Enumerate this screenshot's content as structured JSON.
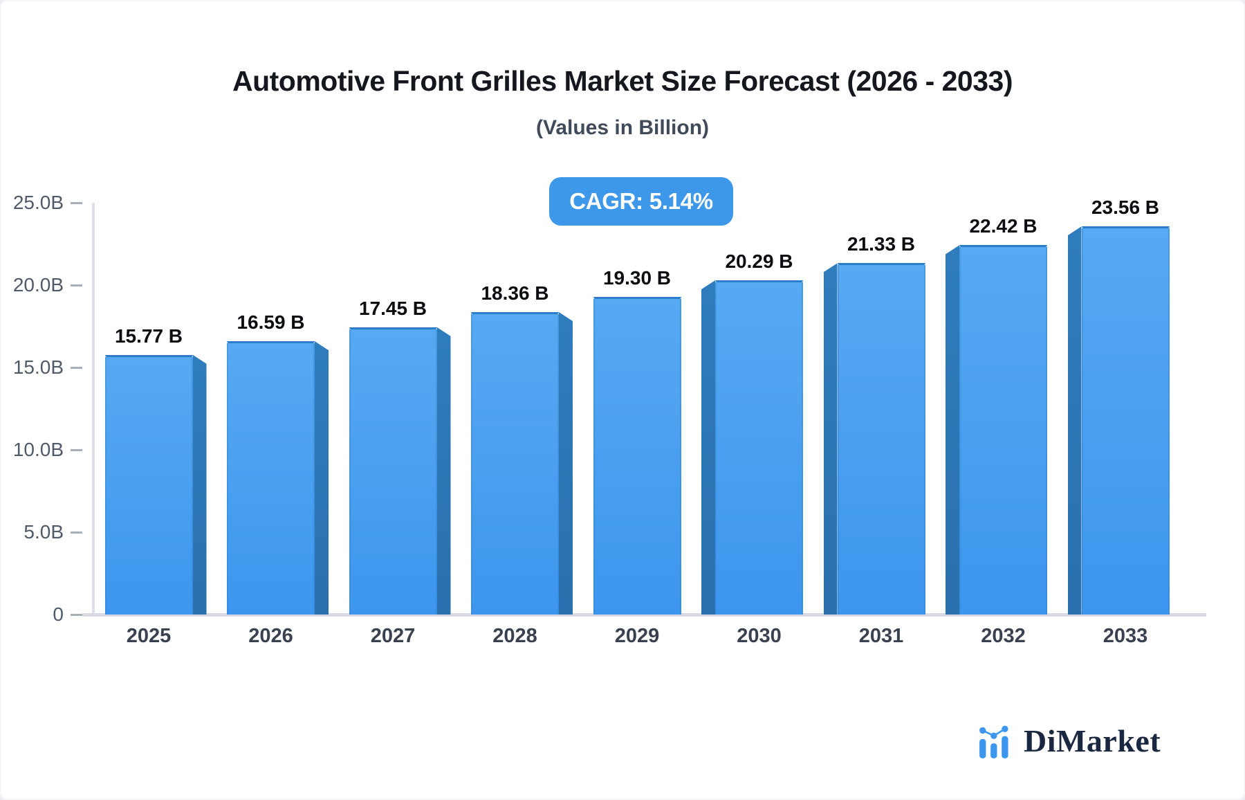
{
  "header": {
    "title": "Automotive Front Grilles Market Size Forecast (2026 - 2033)",
    "subtitle": "(Values in Billion)",
    "cagr_badge": "CAGR: 5.14%"
  },
  "chart_data": {
    "type": "bar",
    "title": "Automotive Front Grilles Market Size Forecast (2026 - 2033)",
    "subtitle": "(Values in Billion)",
    "cagr": "5.14%",
    "categories": [
      "2025",
      "2026",
      "2027",
      "2028",
      "2029",
      "2030",
      "2031",
      "2032",
      "2033"
    ],
    "values": [
      15.77,
      16.59,
      17.45,
      18.36,
      19.3,
      20.29,
      21.33,
      22.42,
      23.56
    ],
    "bar_labels": [
      "15.77 B",
      "16.59 B",
      "17.45 B",
      "18.36 B",
      "19.30 B",
      "20.29 B",
      "21.33 B",
      "22.42 B",
      "23.56 B"
    ],
    "unit": "Billion",
    "xlabel": "",
    "ylabel": "",
    "ylim": [
      0,
      25
    ],
    "grid": false,
    "legend": "none",
    "yticks": [
      {
        "label": "25.0B",
        "value": 25
      },
      {
        "label": "20.0B",
        "value": 20
      },
      {
        "label": "15.0B",
        "value": 15
      },
      {
        "label": "10.0B",
        "value": 10
      },
      {
        "label": "5.0B",
        "value": 5
      },
      {
        "label": "0",
        "value": 0
      }
    ],
    "colors": {
      "bar_face_top": "#57a9f2",
      "bar_face_bottom": "#3d96ee",
      "bar_side": "#2c76b5",
      "bar_top_edge": "#2c7ecb",
      "badge_background": "#3e98ea",
      "badge_text": "#ffffff",
      "axis_line": "#d7dbe1",
      "tick_text": "#505a68",
      "category_text": "#39414f",
      "value_text": "#0b0d10"
    }
  },
  "branding": {
    "logo_text": "DiMarket",
    "logo_color": "#1a2740",
    "logo_icon_color": "#3d97ee"
  }
}
